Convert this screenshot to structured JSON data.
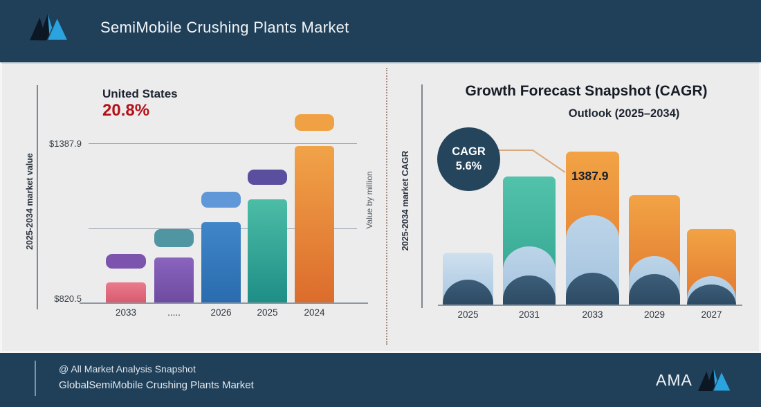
{
  "colors": {
    "header_bg": "#20405a",
    "content_bg": "#ececec",
    "accent_red": "#b41118",
    "badge_navy": "#24455c",
    "connector_tan": "#d9a87c",
    "logo_blue": "#2aa3de",
    "divider_dotted": "#a78d7f"
  },
  "header": {
    "title": "SemiMobile Crushing Plants Market",
    "brand": "AMA"
  },
  "footer": {
    "line1": "@ All Market Analysis Snapshot",
    "line2": "GlobalSemiMobile Crushing Plants Market",
    "brand": "AMA"
  },
  "left_chart": {
    "highlight_label": "United States",
    "highlight_value": "20.8%",
    "axis_label_left": "2025-2034 market value",
    "axis_label_right": "Value by million",
    "tick_top": "$1387.9",
    "tick_bottom": "$820.5",
    "baseline_y": 437,
    "bars": [
      {
        "label": "2033",
        "x": 153,
        "w": 58,
        "top": 408,
        "grad": [
          "#ea7b8d",
          "#d95b70"
        ],
        "cap": {
          "top": 367,
          "h": 21,
          "color": "#7c54ad"
        }
      },
      {
        "label": ".....",
        "x": 223,
        "w": 57,
        "top": 372,
        "grad": [
          "#8a64bd",
          "#6e4ba1"
        ],
        "cap": {
          "top": 331,
          "h": 26,
          "color": "#4f96a2"
        }
      },
      {
        "label": "2026",
        "x": 291,
        "w": 57,
        "top": 321,
        "grad": [
          "#3f86c9",
          "#2a6cae"
        ],
        "cap": {
          "top": 277,
          "h": 23,
          "color": "#6097d8"
        }
      },
      {
        "label": "2025",
        "x": 358,
        "w": 57,
        "top": 288,
        "grad": [
          "#4cbda6",
          "#1e8e87"
        ],
        "cap": {
          "top": 245,
          "h": 22,
          "color": "#5a4f9f"
        }
      },
      {
        "label": "2024",
        "x": 426,
        "w": 57,
        "top": 211,
        "grad": [
          "#f1a348",
          "#dc6c2c"
        ],
        "cap": {
          "top": 165,
          "h": 24,
          "color": "#f0a143"
        }
      }
    ]
  },
  "right_chart": {
    "title": "Growth Forecast Snapshot (CAGR)",
    "subtitle": "Outlook (2025–2034)",
    "axis_label_left": "2025-2034 market CAGR",
    "cagr_badge": {
      "label": "CAGR",
      "value": "5.6%"
    },
    "callout_value": "1387.9",
    "baseline_y": 441,
    "bars": [
      {
        "label": "2025",
        "x": 640,
        "w": 73,
        "segments": [
          {
            "top": 365,
            "grad": [
              "#cfe0ee",
              "#a7c6e1"
            ],
            "dome": false
          },
          {
            "top": 404,
            "grad": [
              "#3c5d79",
              "#2d4a63"
            ],
            "dome": true
          }
        ]
      },
      {
        "label": "2031",
        "x": 727,
        "w": 76,
        "segments": [
          {
            "top": 255,
            "grad": [
              "#52c2ab",
              "#2fa18d"
            ],
            "dome": false
          },
          {
            "top": 356,
            "grad": [
              "#bcd4e8",
              "#a3c2de"
            ],
            "dome": true
          },
          {
            "top": 398,
            "grad": [
              "#3c5d79",
              "#2d4a63"
            ],
            "dome": true
          }
        ]
      },
      {
        "label": "2033",
        "x": 818,
        "w": 77,
        "segments": [
          {
            "top": 219,
            "grad": [
              "#f2a345",
              "#e0762e"
            ],
            "dome": false
          },
          {
            "top": 311,
            "grad": [
              "#bcd4e8",
              "#a3c2de"
            ],
            "dome": true
          },
          {
            "top": 394,
            "grad": [
              "#3c5d79",
              "#2d4a63"
            ],
            "dome": true
          }
        ]
      },
      {
        "label": "2029",
        "x": 909,
        "w": 74,
        "segments": [
          {
            "top": 282,
            "grad": [
              "#f2a345",
              "#e0762e"
            ],
            "dome": false
          },
          {
            "top": 370,
            "grad": [
              "#bcd4e8",
              "#a3c2de"
            ],
            "dome": true
          },
          {
            "top": 396,
            "grad": [
              "#3c5d79",
              "#2d4a63"
            ],
            "dome": true
          }
        ]
      },
      {
        "label": "2027",
        "x": 993,
        "w": 71,
        "segments": [
          {
            "top": 331,
            "grad": [
              "#f2a345",
              "#e0762e"
            ],
            "dome": false
          },
          {
            "top": 399,
            "grad": [
              "#bcd4e8",
              "#a3c2de"
            ],
            "dome": true
          },
          {
            "top": 411,
            "grad": [
              "#3c5d79",
              "#2d4a63"
            ],
            "dome": true
          }
        ]
      }
    ]
  },
  "chart_data": [
    {
      "type": "bar",
      "title": "United States",
      "annotation": "20.8%",
      "categories": [
        "2033",
        ".....",
        "2026",
        "2025",
        "2024"
      ],
      "values": [
        890,
        980,
        1110,
        1190,
        1388
      ],
      "ylabel": "2025-2034 market value",
      "ylabel_right": "Value by million",
      "y_ticks": [
        "$820.5",
        "$1387.9"
      ],
      "ylim": [
        820.5,
        1387.9
      ],
      "grid": true,
      "legend": false
    },
    {
      "type": "bar",
      "subtype": "stacked",
      "title": "Growth Forecast Snapshot (CAGR)",
      "subtitle": "Outlook (2025–2034)",
      "categories": [
        "2025",
        "2031",
        "2033",
        "2029",
        "2027"
      ],
      "series": [
        {
          "name": "navy-base",
          "values": [
            231,
            269,
            294,
            281,
            188
          ]
        },
        {
          "name": "light-blue-mid",
          "values": [
            244,
            263,
            519,
            163,
            75
          ]
        },
        {
          "name": "accent-top",
          "values": [
            0,
            631,
            575,
            550,
            425
          ]
        }
      ],
      "totals": [
        475,
        1163,
        1387.9,
        994,
        688
      ],
      "annotations": {
        "cagr": "5.6%",
        "labeled_bar": {
          "category": "2033",
          "value": 1387.9
        }
      },
      "ylabel": "2025-2034 market CAGR",
      "grid": false,
      "legend": false
    }
  ]
}
